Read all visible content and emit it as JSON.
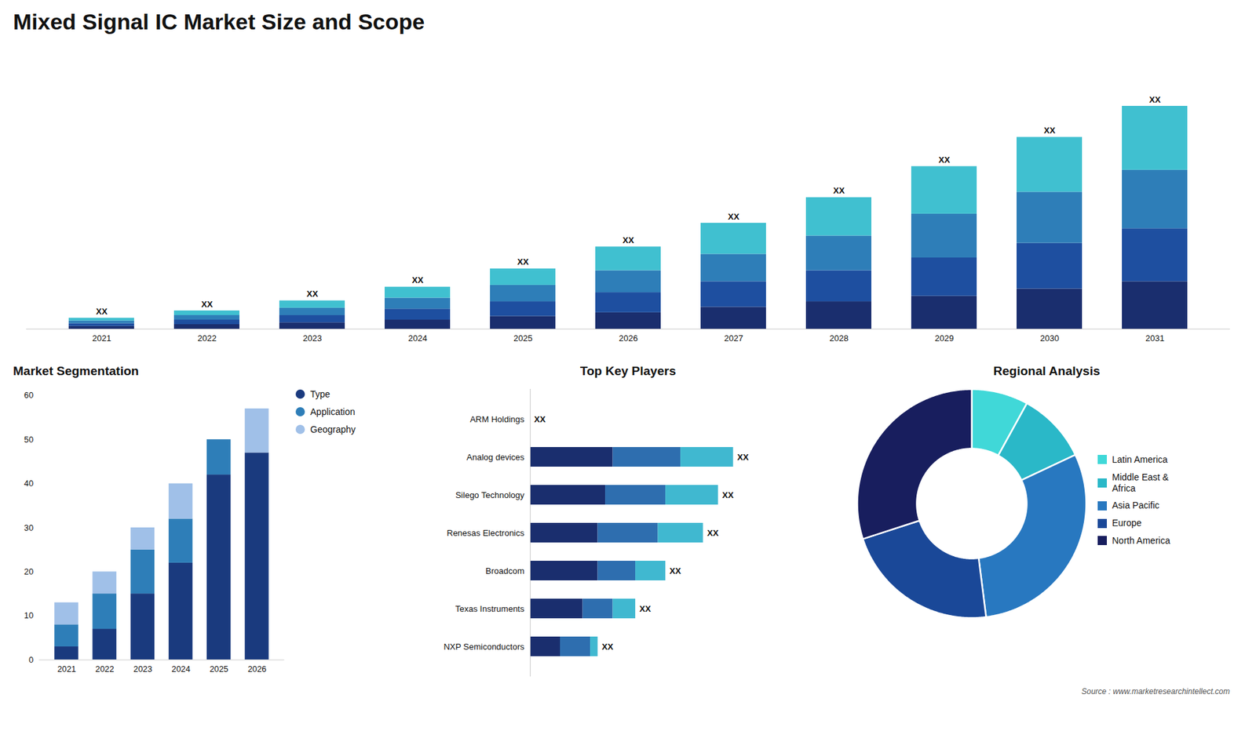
{
  "chart_data": [
    {
      "type": "bar",
      "title": "Mixed Signal IC Market Size and Scope",
      "stacked": true,
      "categories": [
        "2021",
        "2022",
        "2023",
        "2024",
        "2025",
        "2026",
        "2027",
        "2028",
        "2029",
        "2030",
        "2031"
      ],
      "series": [
        {
          "color": "#1a2e6e",
          "values": [
            1.5,
            2.5,
            3.5,
            5,
            7,
            9,
            12,
            15,
            18,
            22,
            26
          ]
        },
        {
          "color": "#1e4fa0",
          "values": [
            1.5,
            2.5,
            4,
            6,
            8,
            11,
            14,
            17,
            21,
            25,
            29
          ]
        },
        {
          "color": "#2e7eb8",
          "values": [
            1.5,
            2.5,
            4,
            6,
            9,
            12,
            15,
            19,
            24,
            28,
            32
          ]
        },
        {
          "color": "#40c0d0",
          "values": [
            1.5,
            2.5,
            4,
            6,
            9,
            13,
            17,
            21,
            26,
            30,
            35
          ]
        }
      ],
      "ylim": [
        0,
        148.84
      ],
      "tick_labels": "x",
      "grid": false,
      "annotations": [
        {
          "category": "2021",
          "text": "XX"
        },
        {
          "category": "2022",
          "text": "XX"
        },
        {
          "category": "2023",
          "text": "XX"
        },
        {
          "category": "2024",
          "text": "XX"
        },
        {
          "category": "2025",
          "text": "XX"
        },
        {
          "category": "2026",
          "text": "XX"
        },
        {
          "category": "2027",
          "text": "XX"
        },
        {
          "category": "2028",
          "text": "XX"
        },
        {
          "category": "2029",
          "text": "XX"
        },
        {
          "category": "2030",
          "text": "XX"
        },
        {
          "category": "2031",
          "text": "XX"
        },
        {
          "text": "Source : www.marketresearchintellect.com"
        }
      ]
    },
    {
      "type": "bar",
      "title": "Market Segmentation",
      "stacked": true,
      "categories": [
        "2021",
        "2022",
        "2023",
        "2024",
        "2025",
        "2026"
      ],
      "series": [
        {
          "name": "Type",
          "color": "#1a3a7e",
          "values": [
            3,
            7,
            15,
            22,
            42,
            47
          ]
        },
        {
          "name": "Application",
          "color": "#2e7eb8",
          "values": [
            5,
            8,
            10,
            10,
            8,
            0
          ]
        },
        {
          "name": "Geography",
          "color": "#a0c0e8",
          "values": [
            5,
            5,
            5,
            8,
            0,
            10
          ]
        }
      ],
      "ylim": [
        0,
        60
      ],
      "yticks": [
        0,
        10,
        20,
        30,
        40,
        50,
        60
      ],
      "grid": false,
      "legend": "right"
    },
    {
      "type": "bar",
      "title": "Top Key Players",
      "orientation": "horizontal",
      "stacked": true,
      "categories": [
        "ARM Holdings",
        "Analog devices",
        "Silego Technology",
        "Renesas Electronics",
        "Broadcom",
        "Texas Instruments",
        "NXP Semiconductors"
      ],
      "series": [
        {
          "color": "#1a2e6e",
          "values": [
            0,
            11,
            10,
            9,
            9,
            7,
            4
          ]
        },
        {
          "color": "#2e6eaf",
          "values": [
            0,
            9,
            8,
            8,
            5,
            4,
            4
          ]
        },
        {
          "color": "#40b8d0",
          "values": [
            0,
            7,
            7,
            6,
            4,
            3,
            1
          ]
        }
      ],
      "xlim": [
        0,
        38.25
      ],
      "tick_labels": "y",
      "grid": false,
      "annotations": [
        {
          "category": "ARM Holdings",
          "text": "XX"
        },
        {
          "category": "Analog devices",
          "text": "XX"
        },
        {
          "category": "Silego Technology",
          "text": "XX"
        },
        {
          "category": "Renesas Electronics",
          "text": "XX"
        },
        {
          "category": "Broadcom",
          "text": "XX"
        },
        {
          "category": "Texas Instruments",
          "text": "XX"
        },
        {
          "category": "NXP Semiconductors",
          "text": "XX"
        }
      ]
    },
    {
      "type": "donut",
      "title": "Regional Analysis",
      "categories": [
        "Latin America",
        "Middle East &\nAfrica",
        "Asia Pacific",
        "Europe",
        "North America"
      ],
      "values": [
        8,
        10,
        30,
        22,
        30
      ],
      "colors": [
        "#40d8d8",
        "#2ab8c8",
        "#2878c0",
        "#1a4898",
        "#181e5e"
      ],
      "legend": "right"
    }
  ]
}
